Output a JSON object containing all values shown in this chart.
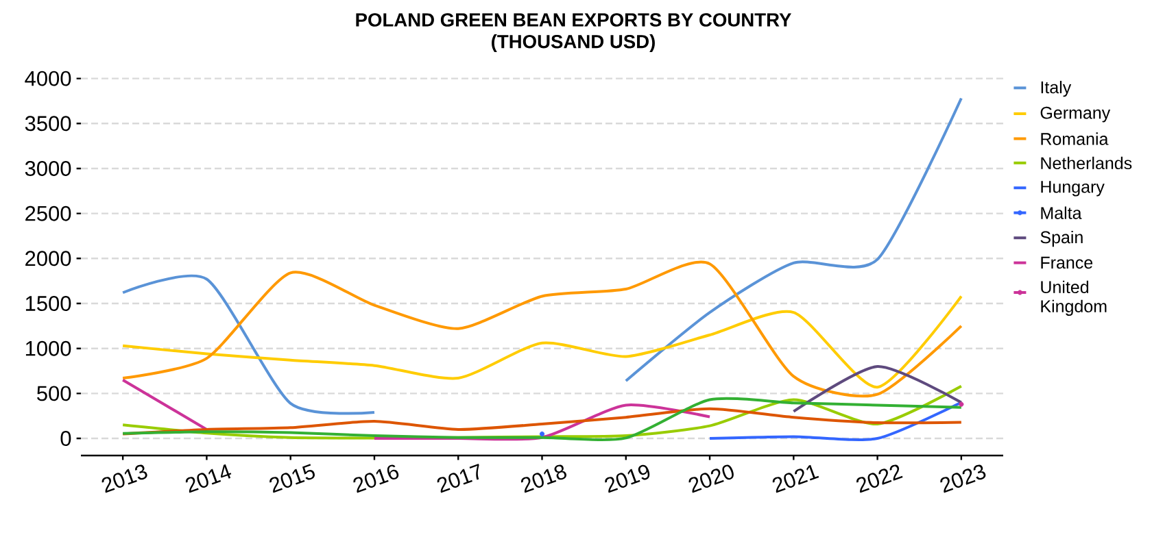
{
  "chart_data": {
    "type": "line",
    "title": "POLAND GREEN BEAN EXPORTS BY COUNTRY",
    "subtitle": "(THOUSAND USD)",
    "categories": [
      "2013",
      "2014",
      "2015",
      "2016",
      "2017",
      "2018",
      "2019",
      "2020",
      "2021",
      "2022",
      "2023"
    ],
    "series": [
      {
        "name": "Italy",
        "color": "#5a93d7",
        "values": [
          1620,
          1770,
          390,
          290,
          null,
          null,
          640,
          1400,
          1950,
          1990,
          3780
        ]
      },
      {
        "name": "Germany",
        "color": "#ffcc00",
        "values": [
          1030,
          940,
          870,
          810,
          670,
          1060,
          910,
          1150,
          1400,
          570,
          1580
        ]
      },
      {
        "name": "Romania",
        "color": "#ff9900",
        "values": [
          670,
          890,
          1840,
          1480,
          1220,
          1580,
          1660,
          1940,
          690,
          490,
          1250
        ]
      },
      {
        "name": "Netherlands",
        "color": "#99cc00",
        "values": [
          150,
          60,
          10,
          5,
          10,
          20,
          30,
          140,
          430,
          160,
          580
        ]
      },
      {
        "name": "Hungary",
        "color": "#3366ff",
        "values": [
          null,
          null,
          null,
          null,
          null,
          null,
          null,
          0,
          20,
          0,
          400
        ]
      },
      {
        "name": "Malta",
        "color": "#3366ff",
        "marker": "circle",
        "values": [
          null,
          null,
          null,
          null,
          null,
          50,
          null,
          null,
          null,
          null,
          null
        ]
      },
      {
        "name": "Spain",
        "color": "#5e4a7e",
        "values": [
          null,
          null,
          null,
          null,
          null,
          null,
          null,
          null,
          300,
          800,
          400
        ]
      },
      {
        "name": "France",
        "color": "#cc3399",
        "values": [
          650,
          100,
          null,
          0,
          0,
          10,
          370,
          240,
          null,
          null,
          null
        ]
      },
      {
        "name": "United Kingdom",
        "color": "#cc3399",
        "marker": "circle",
        "values": [
          null,
          null,
          null,
          null,
          null,
          null,
          null,
          null,
          null,
          null,
          380
        ]
      },
      {
        "color": "#dd5500",
        "values": [
          50,
          100,
          120,
          190,
          100,
          160,
          235,
          330,
          235,
          175,
          180
        ]
      },
      {
        "color": "#33b033",
        "values": [
          55,
          75,
          65,
          30,
          10,
          10,
          5,
          430,
          395,
          370,
          345
        ]
      }
    ],
    "ylim": [
      -190,
      4000
    ],
    "yticks": [
      0,
      500,
      1000,
      1500,
      2000,
      2500,
      3000,
      3500,
      4000
    ],
    "grid": "y",
    "legend": "right"
  }
}
